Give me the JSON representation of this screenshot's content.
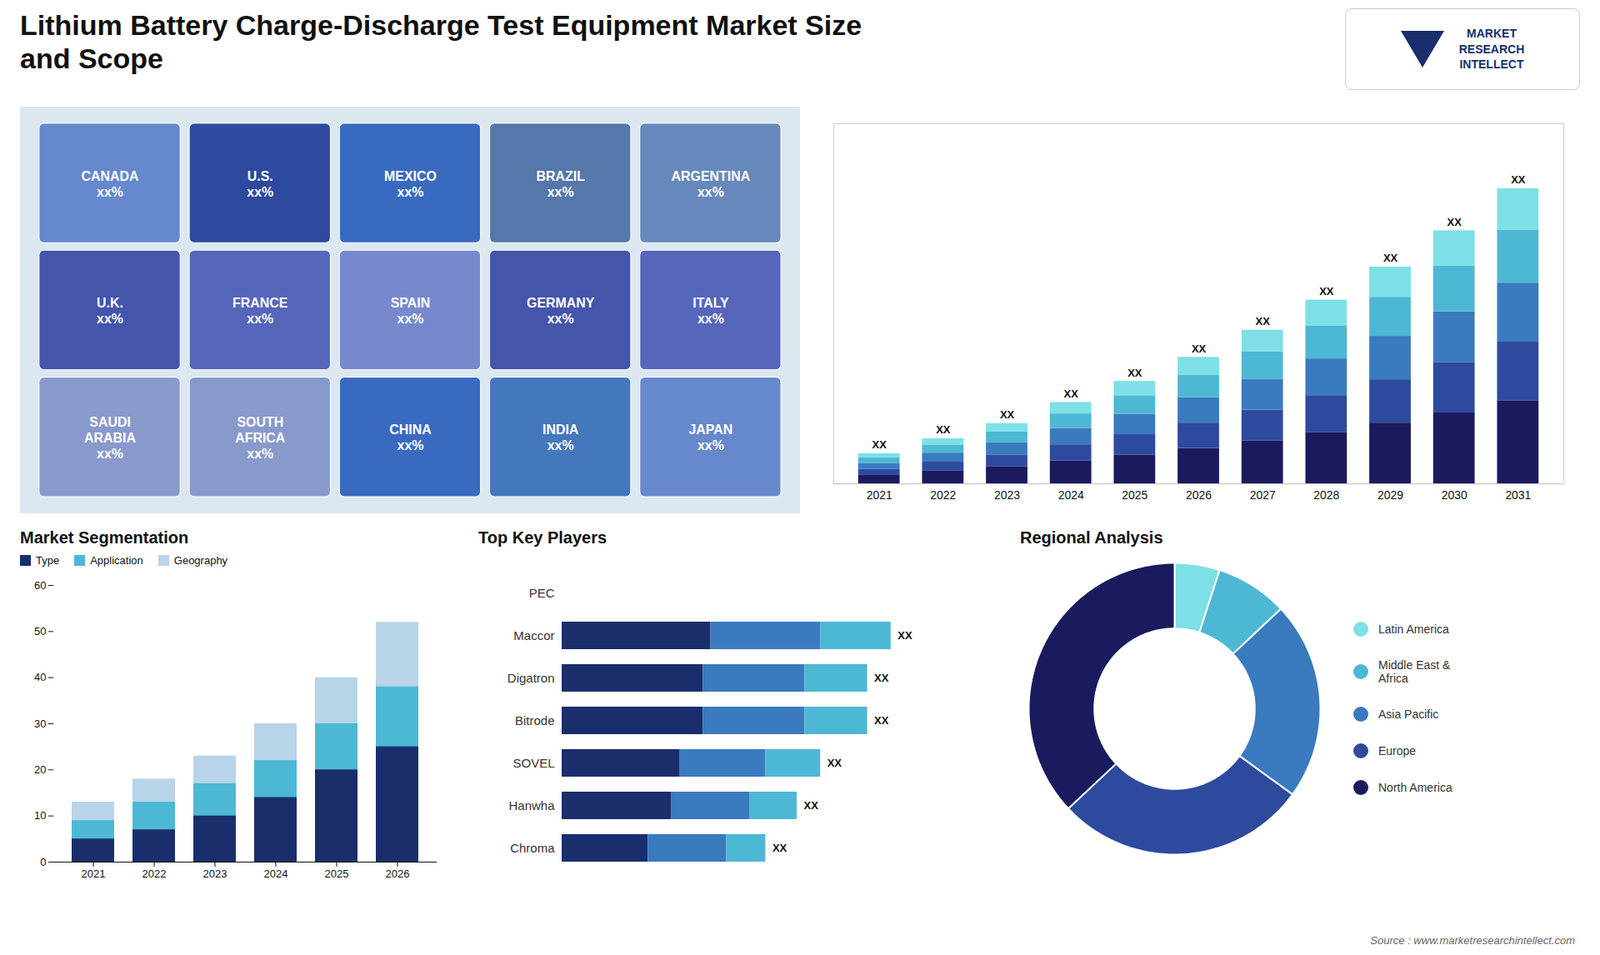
{
  "chart_data": [
    {
      "type": "map",
      "title": "Lithium Battery Charge-Discharge Test Equipment Market Size\nand Scope",
      "categories": [
        "CANADA\nxx%",
        "U.S.\nxx%",
        "MEXICO\nxx%",
        "BRAZIL\nxx%",
        "ARGENTINA\nxx%",
        "U.K.\nxx%",
        "FRANCE\nxx%",
        "SPAIN\nxx%",
        "GERMANY\nxx%",
        "ITALY\nxx%",
        "SAUDI\nARABIA\nxx%",
        "SOUTH\nAFRICA\nxx%",
        "CHINA\nxx%",
        "INDIA\nxx%",
        "JAPAN\nxx%"
      ],
      "colors": [
        "#6688cc",
        "#2e4a9e",
        "#3a6abf",
        "#5577aa",
        "#6688bb",
        "#4455aa",
        "#5566bb",
        "#7788cc",
        "#4455aa",
        "#5566bb",
        "#8899cc",
        "#8899cc",
        "#3a6abf",
        "#4477bb",
        "#6688cc"
      ],
      "tick_labels": false,
      "annotations": [
        "MARKET\nRESEARCH\nINTELLECT",
        "Source : www.marketresearchintellect.com"
      ]
    },
    {
      "type": "bar",
      "stacked": true,
      "categories": [
        "2021",
        "2022",
        "2023",
        "2024",
        "2025",
        "2026",
        "2027",
        "2028",
        "2029",
        "2030",
        "2031"
      ],
      "series": [
        {
          "color": "#1a1a5e",
          "values": [
            0.28,
            0.42,
            0.56,
            0.756,
            0.952,
            1.176,
            1.428,
            1.708,
            2.016,
            2.352,
            2.744
          ]
        },
        {
          "color": "#2e4a9e",
          "values": [
            0.2,
            0.3,
            0.4,
            0.54,
            0.68,
            0.84,
            1.02,
            1.22,
            1.44,
            1.68,
            1.96
          ]
        },
        {
          "color": "#3a7abf",
          "values": [
            0.2,
            0.3,
            0.4,
            0.54,
            0.68,
            0.84,
            1.02,
            1.22,
            1.44,
            1.68,
            1.96
          ]
        },
        {
          "color": "#4db8d4",
          "values": [
            0.18,
            0.27,
            0.36,
            0.486,
            0.612,
            0.756,
            0.918,
            1.098,
            1.296,
            1.512,
            1.764
          ]
        },
        {
          "color": "#7de0e6",
          "values": [
            0.14,
            0.21,
            0.28,
            0.378,
            0.476,
            0.588,
            0.714,
            0.854,
            1.008,
            1.176,
            1.372
          ]
        }
      ],
      "ylim": [
        0,
        11.956
      ],
      "tick_labels": "x",
      "annotations": [
        "XX",
        "XX",
        "XX",
        "XX",
        "XX",
        "XX",
        "XX",
        "XX",
        "XX",
        "XX",
        "XX"
      ]
    },
    {
      "type": "bar",
      "title": "Market Segmentation",
      "stacked": false,
      "categories": [
        "2021",
        "2022",
        "2023",
        "2024",
        "2025",
        "2026"
      ],
      "series": [
        {
          "name": "Type",
          "color": "#1a2e6e",
          "values": [
            5,
            7,
            10,
            14,
            20,
            25
          ]
        },
        {
          "name": "Application",
          "color": "#4db8d4",
          "values": [
            9,
            13,
            17,
            22,
            30,
            38
          ]
        },
        {
          "name": "Geography",
          "color": "#b8d4e8",
          "values": [
            13,
            18,
            23,
            30,
            40,
            52
          ]
        }
      ],
      "ylim": [
        0,
        60
      ],
      "yticks": [
        0,
        10,
        20,
        30,
        40,
        50,
        60
      ],
      "legend": "upper left"
    },
    {
      "type": "bar",
      "title": "Top Key Players",
      "orientation": "horizontal",
      "stacked": true,
      "categories": [
        "PEC",
        "Maccor",
        "Digatron",
        "Bitrode",
        "SOVEL",
        "Hanwha",
        "Chroma"
      ],
      "series": [
        {
          "color": "#1a2e6e",
          "values": [
            0.0,
            0.38,
            0.36,
            0.36,
            0.3,
            0.28,
            0.22
          ]
        },
        {
          "color": "#3a7abf",
          "values": [
            0.0,
            0.28,
            0.26,
            0.26,
            0.22,
            0.2,
            0.2
          ]
        },
        {
          "color": "#4db8d4",
          "values": [
            0.0,
            0.18,
            0.16,
            0.16,
            0.14,
            0.12,
            0.1
          ]
        }
      ],
      "xlim": [
        0,
        1
      ],
      "tick_labels": "y",
      "annotations": [
        null,
        "XX",
        "XX",
        "XX",
        "XX",
        "XX",
        "XX"
      ]
    },
    {
      "type": "donut",
      "title": "Regional Analysis",
      "categories": [
        "Latin America",
        "Middle East &\nAfrica",
        "Asia Pacific",
        "Europe",
        "North America"
      ],
      "values": [
        5,
        8,
        22,
        28,
        37
      ],
      "colors": [
        "#7de0e6",
        "#4db8d4",
        "#3a7abf",
        "#2e4a9e",
        "#1a1a5e"
      ],
      "legend": "right"
    }
  ]
}
